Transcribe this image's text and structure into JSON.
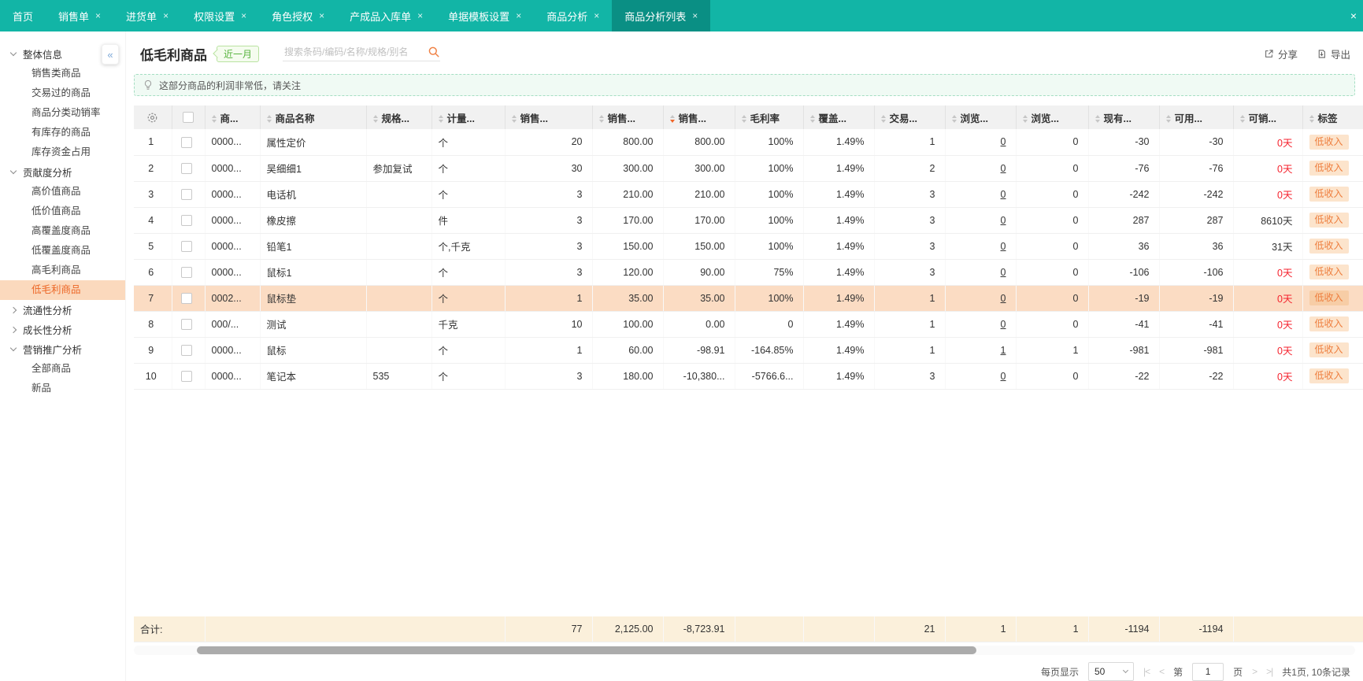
{
  "tabbar": {
    "close_glyph": "×",
    "close_all_glyph": "×",
    "tabs": [
      {
        "label": "首页",
        "closable": false,
        "active": false
      },
      {
        "label": "销售单",
        "closable": true,
        "active": false
      },
      {
        "label": "进货单",
        "closable": true,
        "active": false
      },
      {
        "label": "权限设置",
        "closable": true,
        "active": false
      },
      {
        "label": "角色授权",
        "closable": true,
        "active": false
      },
      {
        "label": "产成品入库单",
        "closable": true,
        "active": false
      },
      {
        "label": "单据模板设置",
        "closable": true,
        "active": false
      },
      {
        "label": "商品分析",
        "closable": true,
        "active": false
      },
      {
        "label": "商品分析列表",
        "closable": true,
        "active": true
      }
    ]
  },
  "sidebar": {
    "collapse_glyph": "«",
    "groups": [
      {
        "label": "整体信息",
        "expanded": true,
        "items": [
          {
            "label": "销售类商品"
          },
          {
            "label": "交易过的商品"
          },
          {
            "label": "商品分类动销率"
          },
          {
            "label": "有库存的商品"
          },
          {
            "label": "库存资金占用"
          }
        ]
      },
      {
        "label": "贡献度分析",
        "expanded": true,
        "items": [
          {
            "label": "高价值商品"
          },
          {
            "label": "低价值商品"
          },
          {
            "label": "高覆盖度商品"
          },
          {
            "label": "低覆盖度商品"
          },
          {
            "label": "高毛利商品"
          },
          {
            "label": "低毛利商品",
            "active": true
          }
        ]
      },
      {
        "label": "流通性分析",
        "expanded": false,
        "items": []
      },
      {
        "label": "成长性分析",
        "expanded": false,
        "items": []
      },
      {
        "label": "营销推广分析",
        "expanded": true,
        "items": [
          {
            "label": "全部商品"
          },
          {
            "label": "新品"
          }
        ]
      }
    ]
  },
  "header": {
    "title": "低毛利商品",
    "badge": "近一月",
    "search_placeholder": "搜索条码/编码/名称/规格/别名",
    "share_label": "分享",
    "export_label": "导出"
  },
  "icons": {
    "search": "magnifier",
    "share": "box-with-arrow",
    "export": "document-with-arrow",
    "settings": "gear",
    "notice": "lightbulb",
    "collapse": "double-chevron-left",
    "accent_orange": "#F0662A",
    "teal": "#12B5A6"
  },
  "notice": {
    "text": "这部分商品的利润非常低，请关注"
  },
  "table": {
    "columns": [
      {
        "label": "商...",
        "align": "left"
      },
      {
        "label": "商品名称",
        "align": "left"
      },
      {
        "label": "规格...",
        "align": "left"
      },
      {
        "label": "计量...",
        "align": "left"
      },
      {
        "label": "销售...",
        "align": "right"
      },
      {
        "label": "销售...",
        "align": "right"
      },
      {
        "label": "销售...",
        "align": "right",
        "sorted": "desc"
      },
      {
        "label": "毛利率",
        "align": "right"
      },
      {
        "label": "覆盖...",
        "align": "right"
      },
      {
        "label": "交易...",
        "align": "right"
      },
      {
        "label": "浏览...",
        "align": "right",
        "link": true
      },
      {
        "label": "浏览...",
        "align": "right"
      },
      {
        "label": "现有...",
        "align": "right"
      },
      {
        "label": "可用...",
        "align": "right"
      },
      {
        "label": "可销...",
        "align": "right"
      },
      {
        "label": "标签",
        "align": "left"
      }
    ],
    "rows": [
      {
        "idx": "1",
        "code": "0000...",
        "name": "属性定价",
        "spec": "",
        "unit": "个",
        "qty": "20",
        "amount": "800.00",
        "profit": "800.00",
        "margin": "100%",
        "coverage": "1.49%",
        "trades": "1",
        "views1": "0",
        "views2": "0",
        "stock": "-30",
        "avail": "-30",
        "days": "0天",
        "days_alert": true,
        "tag": "低收入",
        "highlighted": false
      },
      {
        "idx": "2",
        "code": "0000...",
        "name": "吴细细1",
        "spec": "参加复试",
        "unit": "个",
        "qty": "30",
        "amount": "300.00",
        "profit": "300.00",
        "margin": "100%",
        "coverage": "1.49%",
        "trades": "2",
        "views1": "0",
        "views2": "0",
        "stock": "-76",
        "avail": "-76",
        "days": "0天",
        "days_alert": true,
        "tag": "低收入",
        "highlighted": false
      },
      {
        "idx": "3",
        "code": "0000...",
        "name": "电话机",
        "spec": "",
        "unit": "个",
        "qty": "3",
        "amount": "210.00",
        "profit": "210.00",
        "margin": "100%",
        "coverage": "1.49%",
        "trades": "3",
        "views1": "0",
        "views2": "0",
        "stock": "-242",
        "avail": "-242",
        "days": "0天",
        "days_alert": true,
        "tag": "低收入",
        "highlighted": false
      },
      {
        "idx": "4",
        "code": "0000...",
        "name": "橡皮擦",
        "spec": "",
        "unit": "件",
        "qty": "3",
        "amount": "170.00",
        "profit": "170.00",
        "margin": "100%",
        "coverage": "1.49%",
        "trades": "3",
        "views1": "0",
        "views2": "0",
        "stock": "287",
        "avail": "287",
        "days": "8610天",
        "days_alert": false,
        "tag": "低收入",
        "highlighted": false
      },
      {
        "idx": "5",
        "code": "0000...",
        "name": "铅笔1",
        "spec": "",
        "unit": "个,千克",
        "qty": "3",
        "amount": "150.00",
        "profit": "150.00",
        "margin": "100%",
        "coverage": "1.49%",
        "trades": "3",
        "views1": "0",
        "views2": "0",
        "stock": "36",
        "avail": "36",
        "days": "31天",
        "days_alert": false,
        "tag": "低收入",
        "highlighted": false
      },
      {
        "idx": "6",
        "code": "0000...",
        "name": "鼠标1",
        "spec": "",
        "unit": "个",
        "qty": "3",
        "amount": "120.00",
        "profit": "90.00",
        "margin": "75%",
        "coverage": "1.49%",
        "trades": "3",
        "views1": "0",
        "views2": "0",
        "stock": "-106",
        "avail": "-106",
        "days": "0天",
        "days_alert": true,
        "tag": "低收入",
        "highlighted": false
      },
      {
        "idx": "7",
        "code": "0002...",
        "name": "鼠标垫",
        "spec": "",
        "unit": "个",
        "qty": "1",
        "amount": "35.00",
        "profit": "35.00",
        "margin": "100%",
        "coverage": "1.49%",
        "trades": "1",
        "views1": "0",
        "views2": "0",
        "stock": "-19",
        "avail": "-19",
        "days": "0天",
        "days_alert": true,
        "tag": "低收入",
        "highlighted": true
      },
      {
        "idx": "8",
        "code": "000/...",
        "name": "测试",
        "spec": "",
        "unit": "千克",
        "qty": "10",
        "amount": "100.00",
        "profit": "0.00",
        "margin": "0",
        "coverage": "1.49%",
        "trades": "1",
        "views1": "0",
        "views2": "0",
        "stock": "-41",
        "avail": "-41",
        "days": "0天",
        "days_alert": true,
        "tag": "低收入",
        "highlighted": false
      },
      {
        "idx": "9",
        "code": "0000...",
        "name": "鼠标",
        "spec": "",
        "unit": "个",
        "qty": "1",
        "amount": "60.00",
        "profit": "-98.91",
        "margin": "-164.85%",
        "coverage": "1.49%",
        "trades": "1",
        "views1": "1",
        "views2": "1",
        "stock": "-981",
        "avail": "-981",
        "days": "0天",
        "days_alert": true,
        "tag": "低收入",
        "highlighted": false
      },
      {
        "idx": "10",
        "code": "0000...",
        "name": "笔记本",
        "spec": "535",
        "unit": "个",
        "qty": "3",
        "amount": "180.00",
        "profit": "-10,380...",
        "margin": "-5766.6...",
        "coverage": "1.49%",
        "trades": "3",
        "views1": "0",
        "views2": "0",
        "stock": "-22",
        "avail": "-22",
        "days": "0天",
        "days_alert": true,
        "tag": "低收入",
        "highlighted": false
      }
    ],
    "totals": {
      "label": "合计:",
      "qty": "77",
      "amount": "2,125.00",
      "profit": "-8,723.91",
      "trades": "21",
      "views1": "1",
      "views2": "1",
      "stock": "-1194",
      "avail": "-1194"
    }
  },
  "pagination": {
    "per_page_label": "每页显示",
    "per_page": "50",
    "first_icon": "|<",
    "prev_icon": "<",
    "page_prefix": "第",
    "page": "1",
    "page_suffix": "页",
    "next_icon": ">",
    "last_icon": ">|",
    "summary": "共1页, 10条记录"
  }
}
